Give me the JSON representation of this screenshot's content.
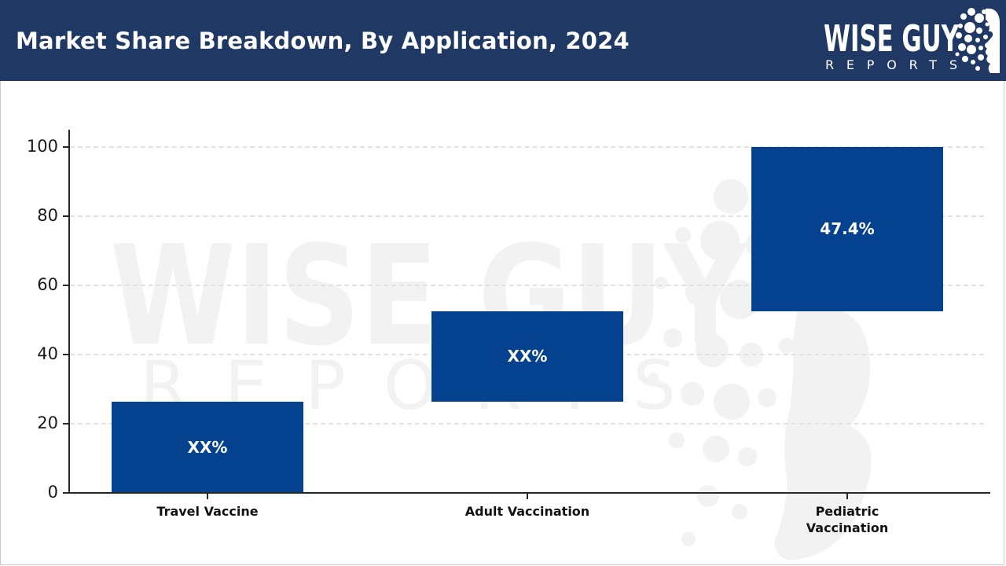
{
  "header": {
    "title": "Market Share Breakdown, By Application, 2024",
    "logo": {
      "line1": "WISE GUY",
      "line2": "REPORTS",
      "icon": "dotted-head-icon"
    }
  },
  "watermark": {
    "line1": "WISE GUY",
    "line2": "REPORTS",
    "icon": "dotted-head-icon"
  },
  "colors": {
    "header_bg": "#203864",
    "bar": "#04428f",
    "grid": "#e2e2e2",
    "axis": "#262626",
    "tick_label": "#1a1a1a",
    "bar_label": "#ffffff",
    "watermark": "#f2f2f2"
  },
  "chart_data": {
    "type": "waterfall",
    "title": "Market Share Breakdown, By Application, 2024",
    "categories": [
      "Travel Vaccine",
      "Adult Vaccination",
      "Pediatric Vaccination"
    ],
    "segments": [
      {
        "label": "Travel Vaccine",
        "label_lines": [
          "Travel Vaccine"
        ],
        "start": 0,
        "end": 26.3,
        "value_label": "XX%"
      },
      {
        "label": "Adult Vaccination",
        "label_lines": [
          "Adult Vaccination"
        ],
        "start": 26.3,
        "end": 52.6,
        "value_label": "XX%"
      },
      {
        "label": "Pediatric Vaccination",
        "label_lines": [
          "Pediatric",
          "Vaccination"
        ],
        "start": 52.6,
        "end": 100,
        "value_label": "47.4%"
      }
    ],
    "y_ticks": [
      0,
      20,
      40,
      60,
      80,
      100
    ],
    "ylim": [
      0,
      105
    ],
    "xlabel": "",
    "ylabel": "",
    "grid": "horizontal-dashed",
    "legend": "none"
  }
}
